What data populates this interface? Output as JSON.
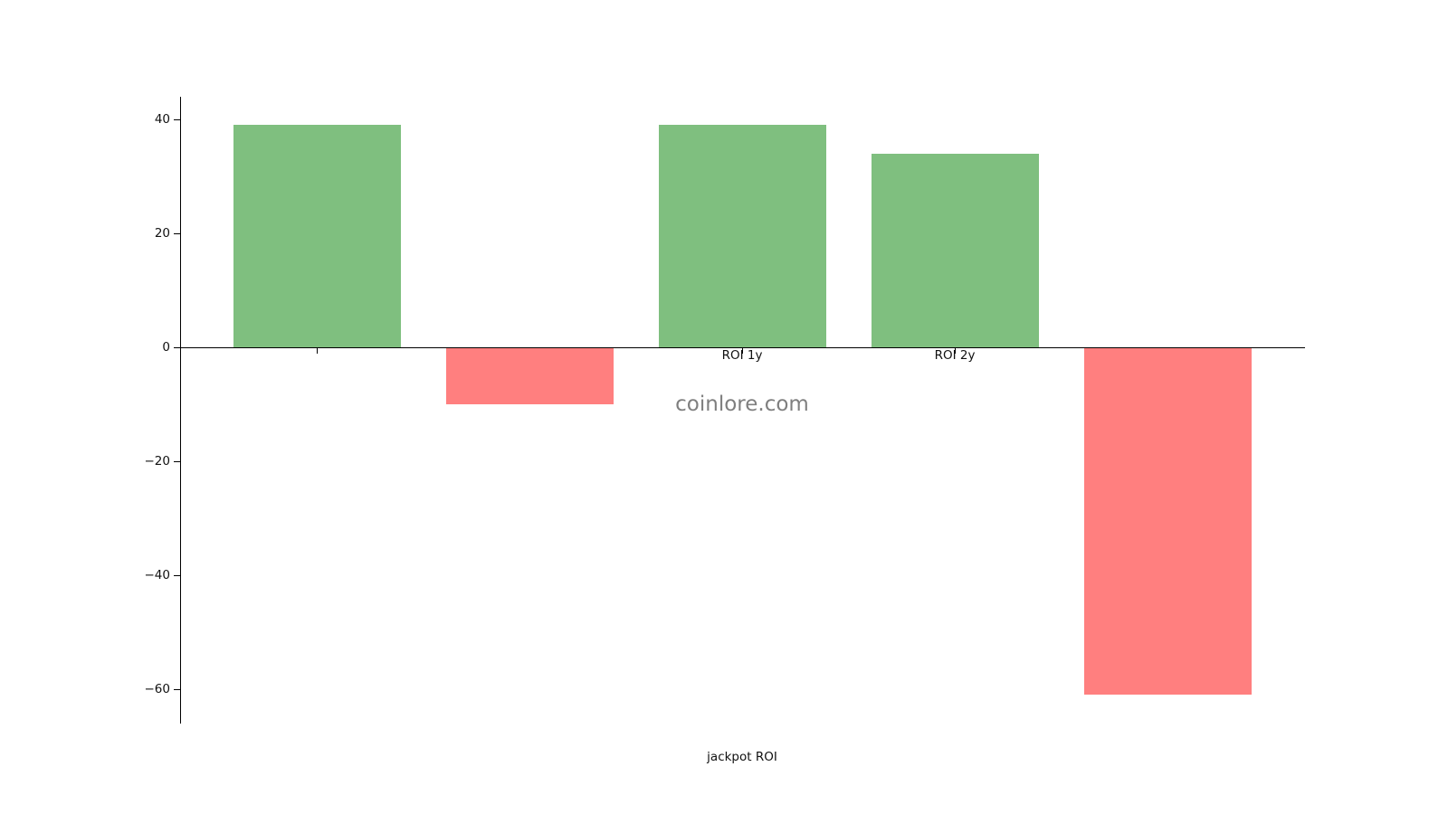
{
  "watermark": "coinlore.com",
  "chart_data": {
    "type": "bar",
    "title": "",
    "categories": [
      "",
      "",
      "ROI 1y",
      "ROI 2y",
      ""
    ],
    "values": [
      39,
      -10,
      39,
      34,
      -61
    ],
    "xlabel": "jackpot ROI",
    "ylabel": "",
    "yticks": [
      40,
      20,
      0,
      -20,
      -40,
      -60
    ],
    "ylim": [
      -66,
      44
    ],
    "grid": false,
    "legend": "none",
    "colors": {
      "positive": "#7fbf7f",
      "negative": "#ff7f7f",
      "axis": "#000000",
      "tick_label": "#111111",
      "watermark": "#7f7f7f"
    }
  }
}
